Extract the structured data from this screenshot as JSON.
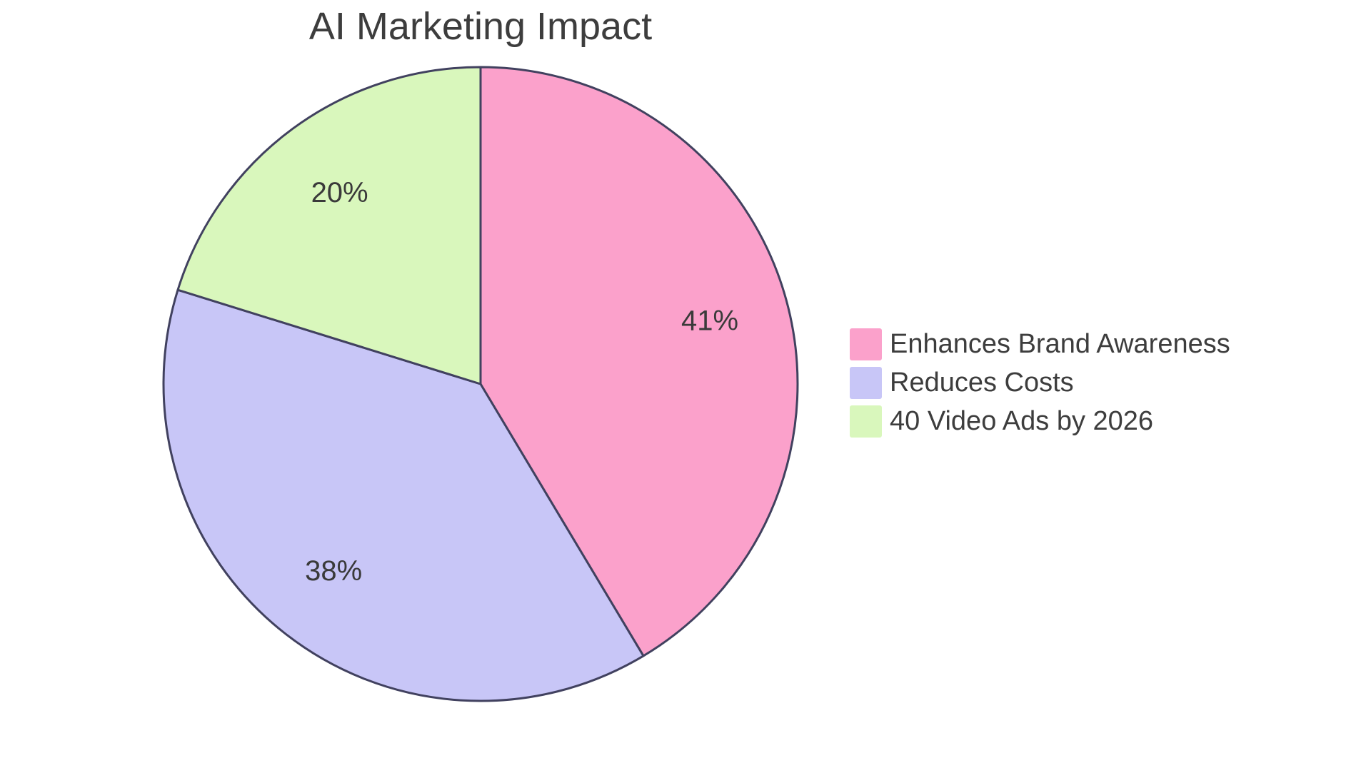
{
  "chart_data": {
    "type": "pie",
    "title": "AI Marketing Impact",
    "legend_position": "right",
    "direction": "clockwise",
    "start_angle_deg": 0,
    "segments": [
      {
        "label": "Enhances Brand Awareness",
        "value": 41,
        "percent_label": "41%",
        "color": "#FBA1CB"
      },
      {
        "label": "Reduces Costs",
        "value": 38,
        "percent_label": "38%",
        "color": "#C8C6F7"
      },
      {
        "label": "40 Video Ads by 2026",
        "value": 20,
        "percent_label": "20%",
        "color": "#D9F7BC"
      }
    ],
    "colors": {
      "slice_border": "#41415F",
      "title_text": "#3D3D3D",
      "slice_label_text": "#3A3A3A",
      "legend_text": "#3D3D3D",
      "background": "#FFFFFF"
    }
  }
}
